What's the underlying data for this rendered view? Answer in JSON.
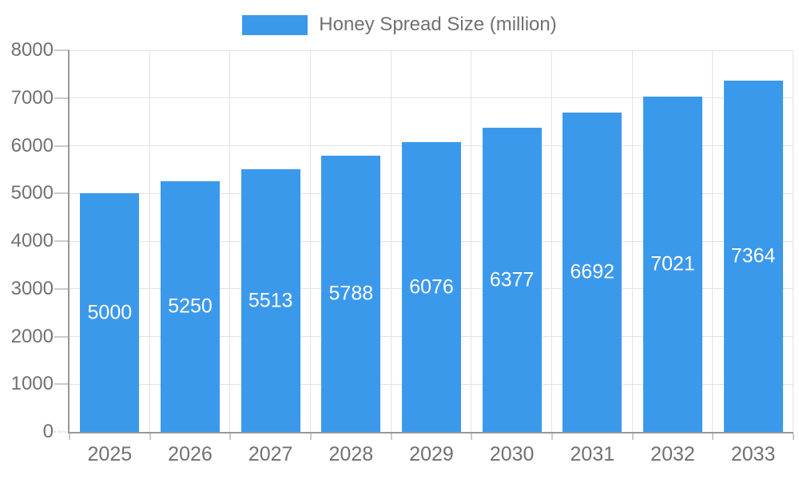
{
  "chart_data": {
    "type": "bar",
    "title": "",
    "xlabel": "",
    "ylabel": "",
    "categories": [
      "2025",
      "2026",
      "2027",
      "2028",
      "2029",
      "2030",
      "2031",
      "2032",
      "2033"
    ],
    "series": [
      {
        "name": "Honey Spread Size (million)",
        "values": [
          5000,
          5250,
          5513,
          5788,
          6076,
          6377,
          6692,
          7021,
          7364
        ]
      }
    ],
    "value_labels": [
      "5000",
      "5250",
      "5513",
      "5788",
      "6076",
      "6377",
      "6692",
      "7021",
      "7364"
    ],
    "ylim": [
      0,
      8000
    ],
    "yticks": [
      0,
      1000,
      2000,
      3000,
      4000,
      5000,
      6000,
      7000,
      8000
    ],
    "ytick_labels": [
      "0",
      "1000",
      "2000",
      "3000",
      "4000",
      "5000",
      "6000",
      "7000",
      "8000"
    ],
    "grid": true,
    "legend_position": "top-center",
    "colors": {
      "bar": "#3B99EC",
      "value_label": "#FFFFFF",
      "axis_text": "#717171",
      "axis_line": "#989898",
      "gridline": "#E3E3E3",
      "tick": "#CBCBCB",
      "background": "#FFFFFF"
    }
  }
}
